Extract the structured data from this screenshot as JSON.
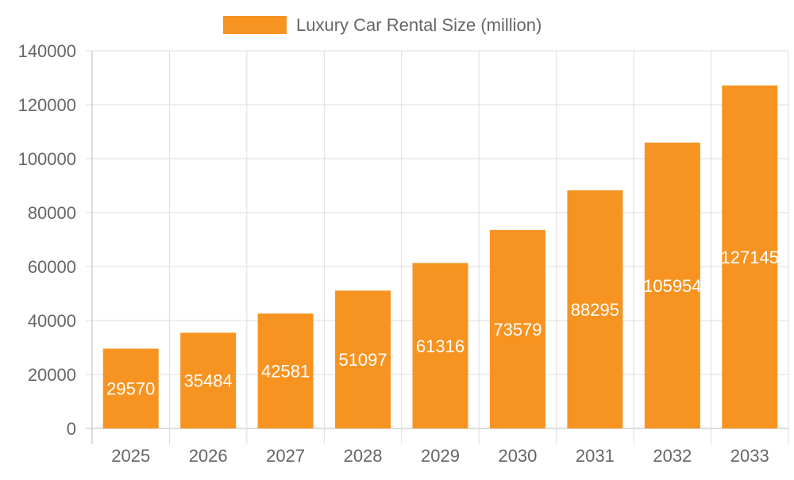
{
  "chart_data": {
    "type": "bar",
    "title": "",
    "xlabel": "",
    "ylabel": "",
    "categories": [
      "2025",
      "2026",
      "2027",
      "2028",
      "2029",
      "2030",
      "2031",
      "2032",
      "2033"
    ],
    "series": [
      {
        "name": "Luxury Car Rental Size (million)",
        "values": [
          29570,
          35484,
          42581,
          51097,
          61316,
          73579,
          88295,
          105954,
          127145
        ],
        "color": "#f79421"
      }
    ],
    "ylim": [
      0,
      140000
    ],
    "yticks": [
      0,
      20000,
      40000,
      60000,
      80000,
      100000,
      120000,
      140000
    ],
    "grid": true,
    "legend": "top",
    "data_labels": true
  }
}
